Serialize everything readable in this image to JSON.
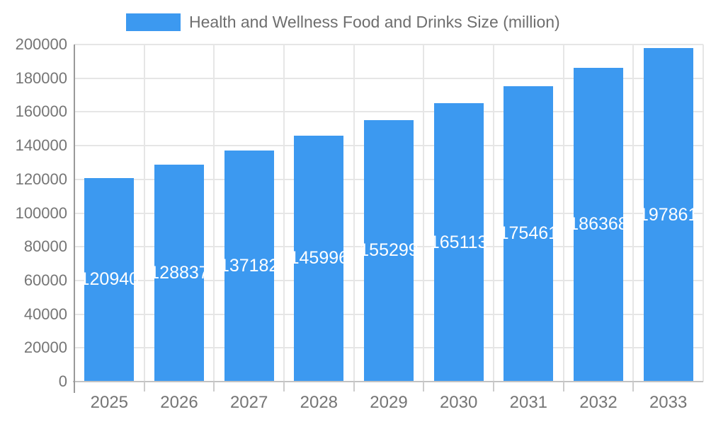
{
  "legend": {
    "label": "Health and Wellness Food and Drinks Size (million)"
  },
  "chart_data": {
    "type": "bar",
    "title": "Health and Wellness Food and Drinks Size (million)",
    "series_name": "Health and Wellness Food and Drinks Size (million)",
    "categories": [
      "2025",
      "2026",
      "2027",
      "2028",
      "2029",
      "2030",
      "2031",
      "2032",
      "2033"
    ],
    "values": [
      120940,
      128837,
      137182,
      145996,
      155299,
      165113,
      175461,
      186368,
      197861
    ],
    "value_labels": [
      "120940",
      "128837",
      "137182",
      "145996",
      "155299",
      "165113",
      "175461",
      "186368",
      "197861"
    ],
    "ylim": [
      0,
      200000
    ],
    "ytick_step": 20000,
    "ytick_labels": [
      "0",
      "20000",
      "40000",
      "60000",
      "80000",
      "100000",
      "120000",
      "140000",
      "160000",
      "180000",
      "200000"
    ],
    "grid": true,
    "legend_position": "top",
    "value_label_position": "inside-center",
    "bar_color": "#3C99F0",
    "value_label_color": "#FFFFFF",
    "axis_label_color": "#757575",
    "legend_label_color": "#6E6E6E",
    "grid_color": "#E6E6E6",
    "baseline_color": "#C2C2C2",
    "axis_line_color": "#999999",
    "tick_color": "#CCCCCC"
  }
}
